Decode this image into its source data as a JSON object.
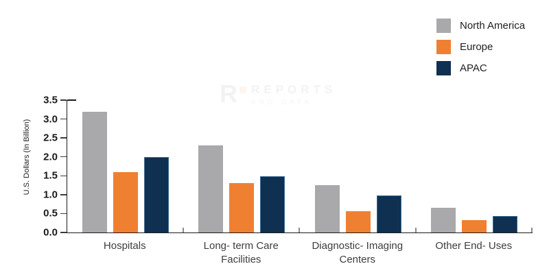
{
  "chart_data": {
    "type": "bar",
    "title": "",
    "categories": [
      "Hospitals",
      "Long- term Care Facilities",
      "Diagnostic- Imaging Centers",
      "Other End- Uses"
    ],
    "series": [
      {
        "name": "North America",
        "color": "#a9a9ab",
        "values": [
          3.2,
          2.3,
          1.25,
          0.65
        ]
      },
      {
        "name": "Europe",
        "color": "#ef8032",
        "values": [
          1.6,
          1.3,
          0.57,
          0.33
        ]
      },
      {
        "name": "APAC",
        "color": "#0f3050",
        "border_color": "#3c6f96",
        "values": [
          2.0,
          1.48,
          0.98,
          0.44
        ]
      }
    ],
    "xlabel": "",
    "ylabel": "U.S. Dollars (In Billion)",
    "ylim": [
      0,
      3.5
    ],
    "yticks": [
      0.0,
      0.5,
      1.0,
      1.5,
      2.0,
      2.5,
      3.0,
      3.5
    ],
    "grid": false,
    "legend_position": "top-right",
    "axis_color": "#1a1a1a",
    "tick_color": "#8a8a8a"
  },
  "watermark": {
    "logo_letter": "R",
    "line1": "REPORTS",
    "line2": "AND DATA"
  }
}
